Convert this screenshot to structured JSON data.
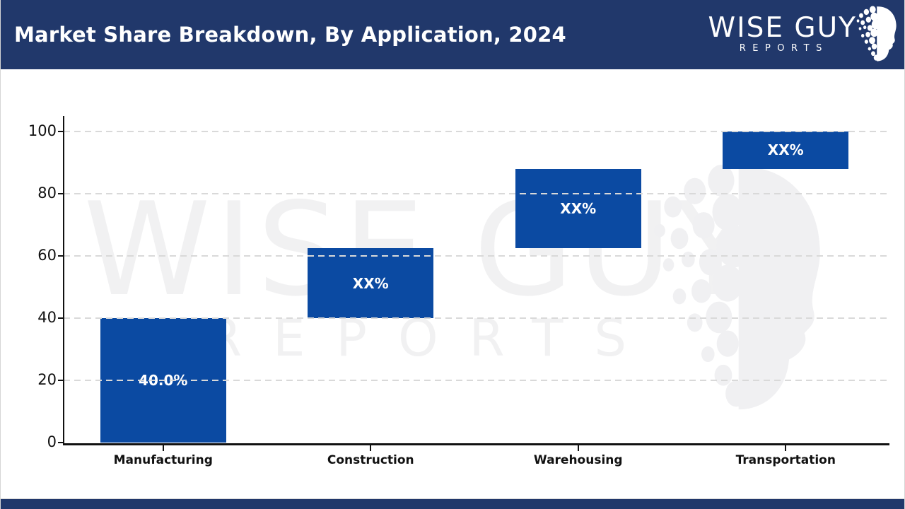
{
  "header": {
    "title": "Market Share Breakdown, By Application, 2024",
    "bg_color": "#21386B",
    "logo": {
      "line1": "WISE GUY",
      "line2": "REPORTS"
    }
  },
  "watermark": {
    "line1": "WISE GUY",
    "line2": "REPORTS"
  },
  "chart_data": {
    "type": "bar",
    "subtype": "waterfall",
    "title": "Market Share Breakdown, By Application, 2024",
    "categories": [
      "Manufacturing",
      "Construction",
      "Warehousing",
      "Transportation"
    ],
    "segments": [
      {
        "category": "Manufacturing",
        "start": 0,
        "end": 40,
        "label": "40.0%"
      },
      {
        "category": "Construction",
        "start": 40,
        "end": 62.5,
        "label": "XX%"
      },
      {
        "category": "Warehousing",
        "start": 62.5,
        "end": 88,
        "label": "XX%"
      },
      {
        "category": "Transportation",
        "start": 88,
        "end": 100,
        "label": "XX%"
      }
    ],
    "yticks": [
      0,
      20,
      40,
      60,
      80,
      100
    ],
    "ylim": [
      0,
      105
    ],
    "xlabel": "",
    "ylabel": "",
    "grid": true,
    "grid_style": "dashed",
    "bar_color": "#0B4AA2",
    "bar_label_color": "#FFFFFF",
    "axis_color": "#111111",
    "gridline_color": "#D9D9D9",
    "legend": null
  },
  "footer": {
    "bg_color": "#21386B"
  }
}
